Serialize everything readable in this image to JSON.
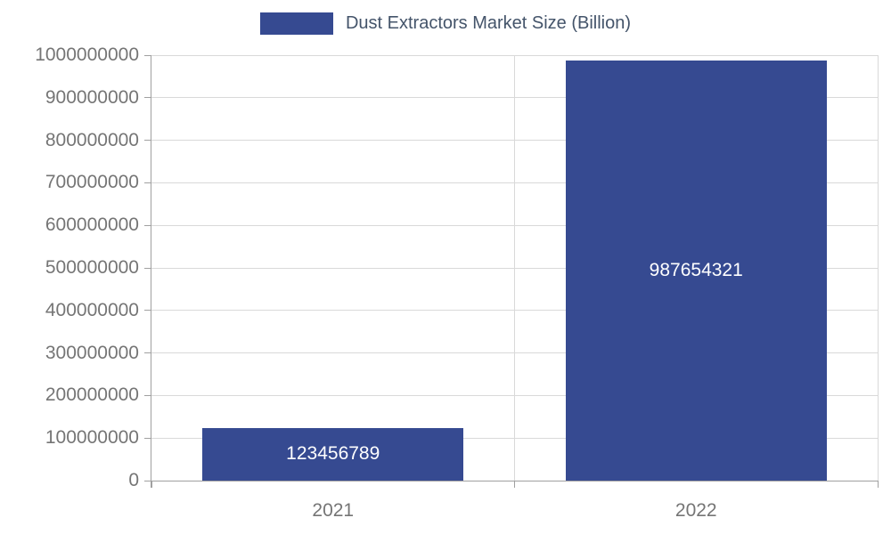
{
  "chart_data": {
    "type": "bar",
    "title": "Dust Extractors Market Size (Billion)",
    "categories": [
      "2021",
      "2022"
    ],
    "values": [
      123456789,
      987654321
    ],
    "data_labels": [
      "123456789",
      "987654321"
    ],
    "xlabel": "",
    "ylabel": "",
    "ylim": [
      0,
      1000000000
    ],
    "y_ticks": [
      0,
      100000000,
      200000000,
      300000000,
      400000000,
      500000000,
      600000000,
      700000000,
      800000000,
      900000000,
      1000000000
    ],
    "grid": true,
    "legend_position": "top-center",
    "colors": {
      "bar": "#364a91",
      "value_label": "#ffffff",
      "axis_text": "#757575",
      "legend_text": "#44546a",
      "gridline": "#d9d9d9",
      "axis_line": "#a0a0a0",
      "background": "#ffffff"
    }
  }
}
